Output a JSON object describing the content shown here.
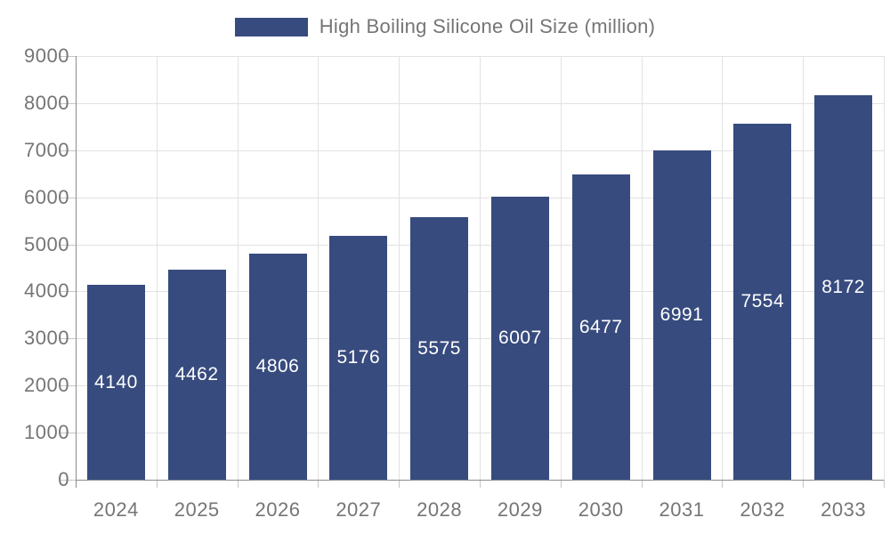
{
  "legend": {
    "label": "High Boiling Silicone Oil Size (million)"
  },
  "chart_data": {
    "type": "bar",
    "title": "High Boiling Silicone Oil Size (million)",
    "categories": [
      "2024",
      "2025",
      "2026",
      "2027",
      "2028",
      "2029",
      "2030",
      "2031",
      "2032",
      "2033"
    ],
    "values": [
      4140,
      4462,
      4806,
      5176,
      5575,
      6007,
      6477,
      6991,
      7554,
      8172
    ],
    "value_labels": [
      "4140",
      "4462",
      "4806",
      "5176",
      "5575",
      "6007",
      "6477",
      "6991",
      "7554",
      "8172"
    ],
    "xlabel": "",
    "ylabel": "",
    "ylim": [
      0,
      9000
    ],
    "yticks": [
      0,
      1000,
      2000,
      3000,
      4000,
      5000,
      6000,
      7000,
      8000,
      9000
    ],
    "grid": true,
    "legend_position": "top-center",
    "colors": {
      "bar": "#374B7E",
      "grid": "#E2E2E2",
      "axis": "#8C8C8C",
      "tick": "#C6C6C6",
      "axis_text": "#757575",
      "value_text": "#FFFFFF",
      "background": "#FFFFFF"
    }
  }
}
